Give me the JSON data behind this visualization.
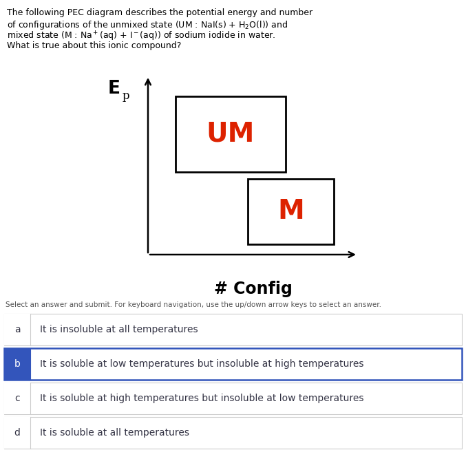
{
  "title_lines": [
    "The following PEC diagram describes the potential energy and number",
    "of configurations of the unmixed state (UM : NaI(s) + H$_2$O(l)) and",
    "mixed state (M : Na$^+$(aq) + I$^-$(aq)) of sodium iodide in water.",
    "What is true about this ionic compound?"
  ],
  "ep_label": "E",
  "ep_sub": "p",
  "xaxis_label": "# Config",
  "um_label": "UM",
  "m_label": "M",
  "box_color": "black",
  "label_color": "#dd2200",
  "background_color": "#ffffff",
  "answer_a": "It is insoluble at all temperatures",
  "answer_b": "It is soluble at low temperatures but insoluble at high temperatures",
  "answer_c": "It is soluble at high temperatures but insoluble at low temperatures",
  "answer_d": "It is soluble at all temperatures",
  "selected_answer": "b",
  "selected_color": "#3355bb",
  "selected_border": "#3355bb",
  "unselected_bg": "#ffffff",
  "unselected_text": "#333344",
  "divider_color": "#cccccc",
  "instr_text": "Select an answer and submit. For keyboard navigation, use the up/down arrow keys to select an answer."
}
